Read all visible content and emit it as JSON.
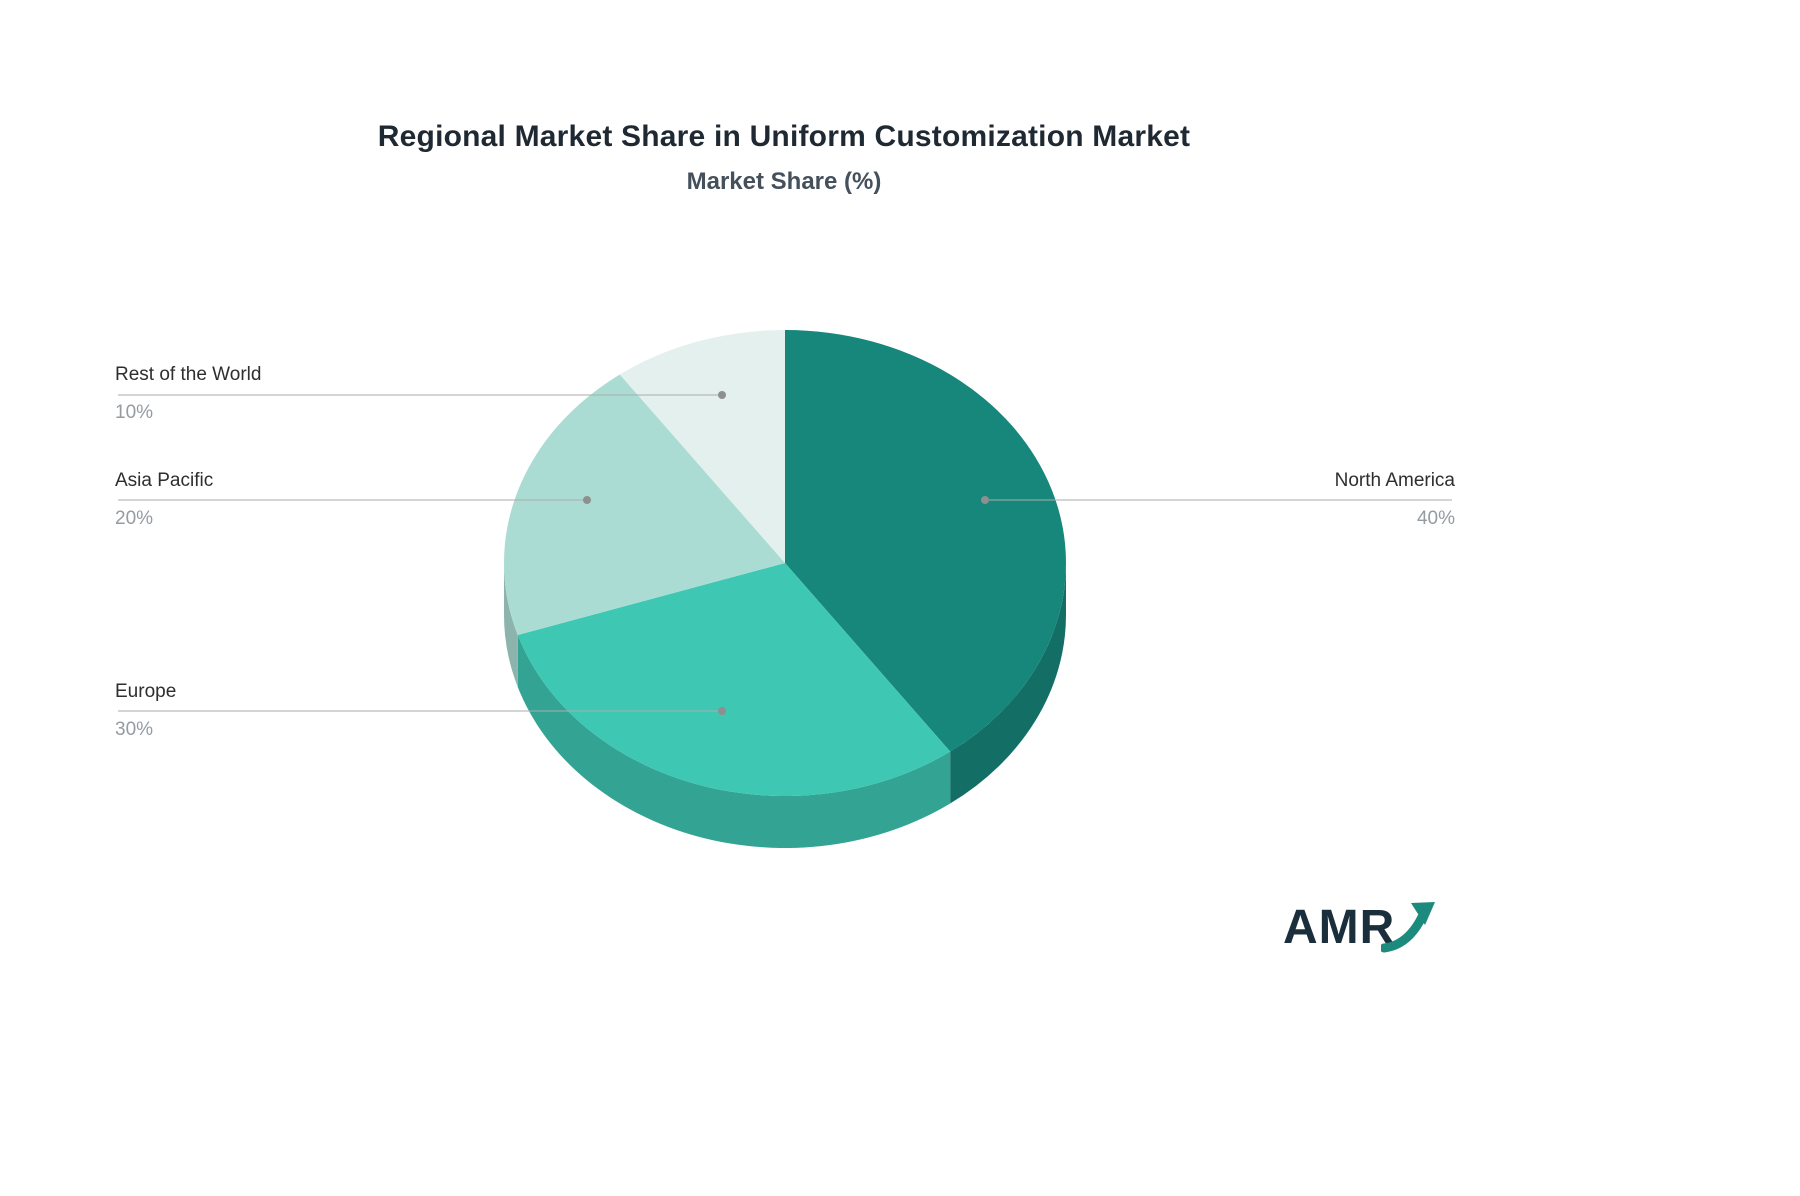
{
  "chart_data": {
    "type": "pie",
    "title": "Regional Market Share in Uniform Customization Market",
    "subtitle": "Market Share (%)",
    "labels": [
      "North America",
      "Europe",
      "Asia Pacific",
      "Rest of the World"
    ],
    "values": [
      40,
      30,
      20,
      10
    ],
    "display_values": [
      "40%",
      "30%",
      "20%",
      "10%"
    ],
    "colors": [
      "#17877B",
      "#3EC8B4",
      "#ABDCD3",
      "#E3F0ED"
    ],
    "unit": "%",
    "style": "3d-pie",
    "start_angle_deg": 0,
    "direction": "clockwise",
    "legend": "none",
    "label_style": "callout-lines"
  },
  "logo": {
    "text": "AMR"
  },
  "theme": {
    "background": "#FFFFFF",
    "callout_line_color": "#ABABAB",
    "callout_value_color": "#949BA1",
    "logo_arrow_color": "#1C8A7D"
  }
}
